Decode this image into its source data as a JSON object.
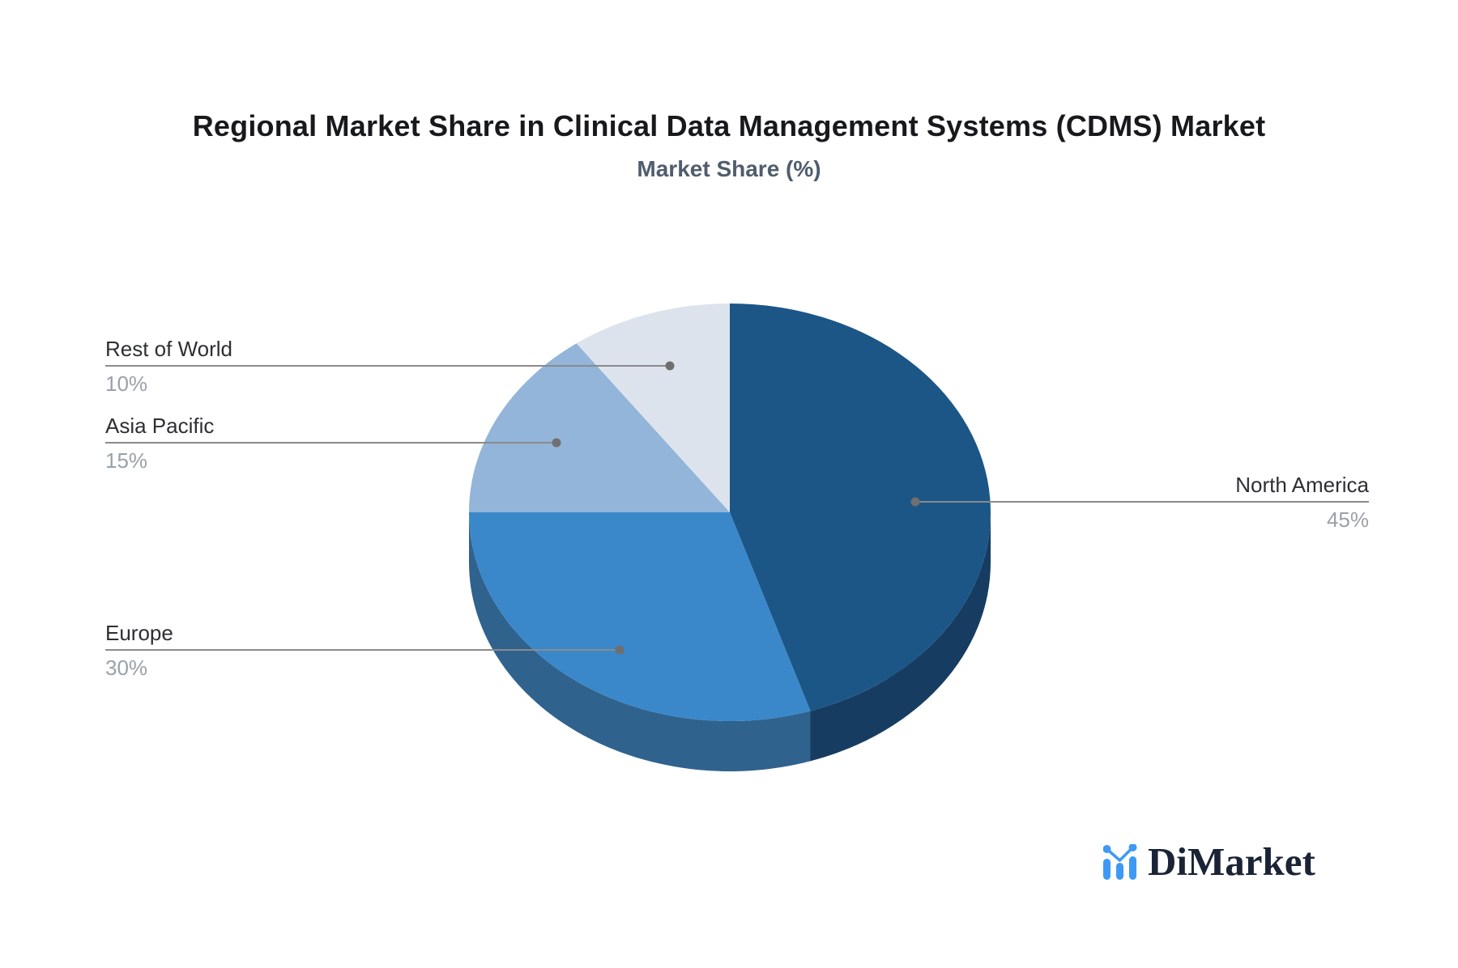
{
  "chart_data": {
    "type": "pie",
    "title": "Regional Market Share in Clinical Data Management Systems (CDMS) Market",
    "subtitle": "Market Share (%)",
    "unit": "%",
    "effect": "3d",
    "rotation": "clockwise-from-top",
    "legend_position": "callout-labels",
    "slices": [
      {
        "label": "North America",
        "value": 45,
        "display": "45%",
        "color": "#1B5687",
        "side_color": "#163D61",
        "label_side": "right"
      },
      {
        "label": "Europe",
        "value": 30,
        "display": "30%",
        "color": "#3A88CA",
        "side_color": "#30628E",
        "label_side": "left"
      },
      {
        "label": "Asia Pacific",
        "value": 15,
        "display": "15%",
        "color": "#92B5D9",
        "side_color": "#6E93BA",
        "label_side": "left"
      },
      {
        "label": "Rest of World",
        "value": 10,
        "display": "10%",
        "color": "#DDE3ED",
        "side_color": "#B5BFD0",
        "label_side": "left"
      }
    ],
    "callout_line_color": "#8B8B8B",
    "callout_dot_color": "#6F6F6F",
    "label_color": "#2D2F31",
    "value_color": "#9AA1A9",
    "title_color": "#17191C",
    "subtitle_color": "#4F5D6D"
  },
  "brand": {
    "name": "DiMarket",
    "icon": "bar-line-chart-icon",
    "icon_color": "#3E99F4",
    "text_color": "#1A2436"
  }
}
